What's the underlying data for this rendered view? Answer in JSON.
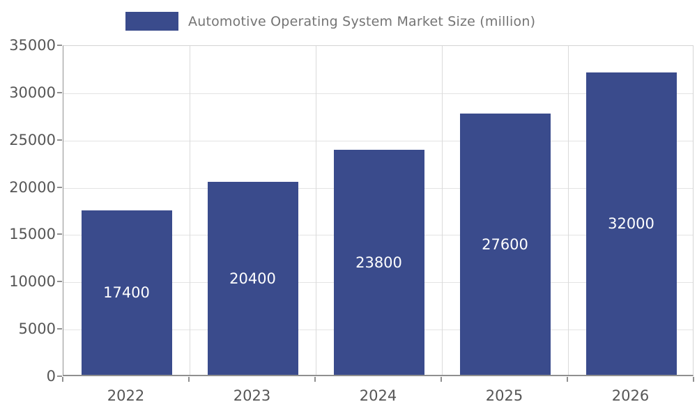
{
  "legend": {
    "label": "Automotive Operating System Market Size (million)"
  },
  "chart_data": {
    "type": "bar",
    "title": "Automotive Operating System Market Size (million)",
    "categories": [
      "2022",
      "2023",
      "2024",
      "2025",
      "2026"
    ],
    "values": [
      17400,
      20400,
      23800,
      27600,
      32000
    ],
    "xlabel": "",
    "ylabel": "",
    "ylim": [
      0,
      35000
    ],
    "yticks": [
      0,
      5000,
      10000,
      15000,
      20000,
      25000,
      30000,
      35000
    ],
    "grid": true,
    "legend_position": "top",
    "colors": {
      "bar": "#3a4b8c",
      "value_label": "#ffffff",
      "axis_text": "#565656",
      "legend_text": "#747474",
      "gridline": "#e3e3e3",
      "axis_line": "#8f8f8f"
    }
  }
}
